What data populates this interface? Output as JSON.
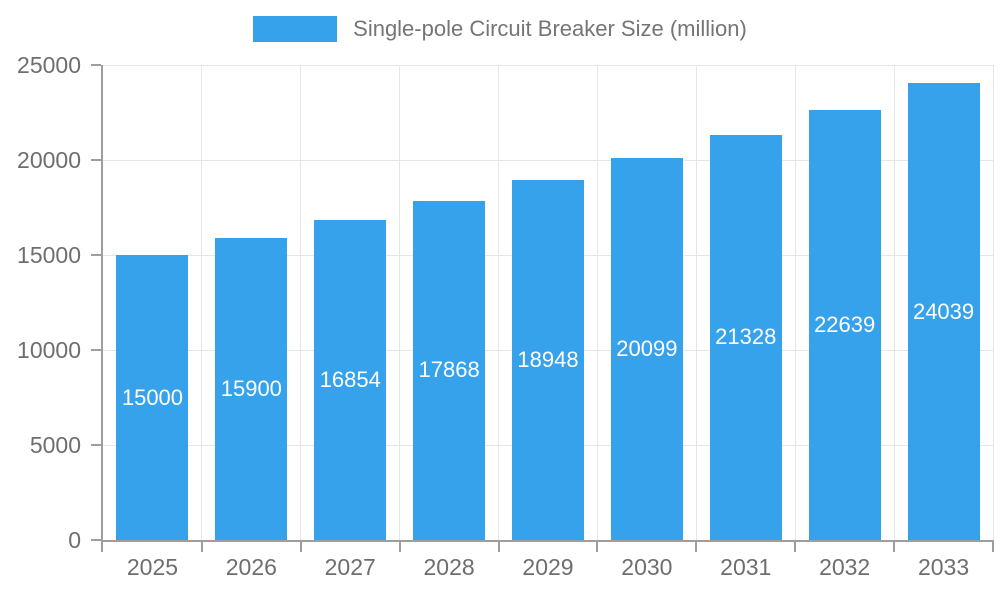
{
  "chart_data": {
    "type": "bar",
    "title": "",
    "legend_label": "Single-pole Circuit Breaker Size (million)",
    "categories": [
      "2025",
      "2026",
      "2027",
      "2028",
      "2029",
      "2030",
      "2031",
      "2032",
      "2033"
    ],
    "series": [
      {
        "name": "Single-pole Circuit Breaker Size (million)",
        "values": [
          15000,
          15900,
          16854,
          17868,
          18948,
          20099,
          21328,
          22639,
          24039
        ]
      }
    ],
    "xlabel": "",
    "ylabel": "",
    "ylim": [
      0,
      25000
    ],
    "yticks": [
      0,
      5000,
      10000,
      15000,
      20000,
      25000
    ],
    "grid": true,
    "legend_position": "top-center",
    "value_labels": "inside-center",
    "colors": {
      "bar": "#36A2EB",
      "value_label": "#FFFFFF",
      "tick_label": "#6E6E6E",
      "legend_text": "#757575",
      "axis": "#9E9E9E",
      "grid": "#E6E6E6",
      "background": "#FFFFFF"
    }
  }
}
